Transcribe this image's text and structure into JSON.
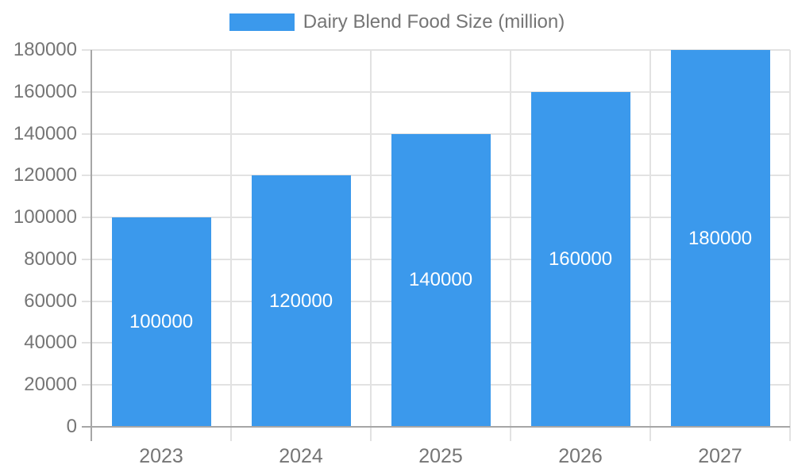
{
  "legend": {
    "label": "Dairy Blend Food Size (million)"
  },
  "chart_data": {
    "type": "bar",
    "legend_entries": [
      "Dairy Blend Food Size (million)"
    ],
    "legend_position": "top-center",
    "categories": [
      "2023",
      "2024",
      "2025",
      "2026",
      "2027"
    ],
    "series": [
      {
        "name": "Dairy Blend Food Size (million)",
        "values": [
          100000,
          120000,
          140000,
          160000,
          180000
        ]
      }
    ],
    "data_labels": [
      "100000",
      "120000",
      "140000",
      "160000",
      "180000"
    ],
    "data_labels_position": "center-inside-bar",
    "xlabel": "",
    "ylabel": "",
    "ylim": [
      0,
      180000
    ],
    "ytick_step": 20000,
    "yticks": [
      0,
      20000,
      40000,
      60000,
      80000,
      100000,
      120000,
      140000,
      160000,
      180000
    ],
    "grid": true,
    "colors": {
      "bar": "#3b99ec",
      "gridline": "#e2e2e2",
      "axis_line": "#a6a6a6",
      "tick_text": "#757575",
      "bar_label_text": "#ffffff",
      "background": "#ffffff"
    }
  }
}
